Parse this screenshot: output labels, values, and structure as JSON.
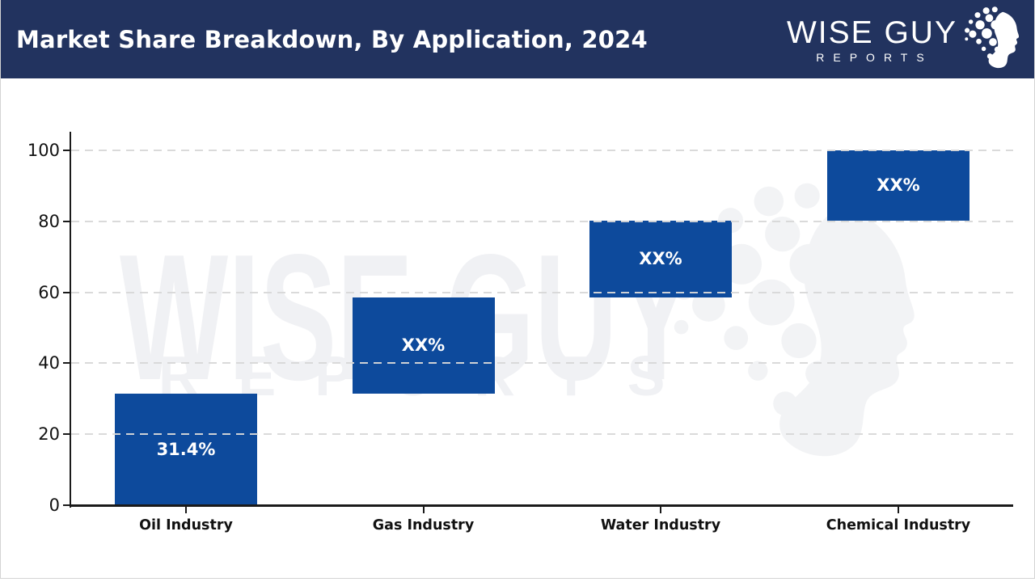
{
  "header": {
    "title": "Market Share Breakdown, By Application, 2024",
    "logo": {
      "primary": "WISE GUY",
      "secondary": "REPORTS"
    }
  },
  "watermark": {
    "primary": "WISE GUY",
    "secondary": "REPORTS"
  },
  "colors": {
    "header_bg": "#22335f",
    "bar": "#0d4a9c",
    "grid": "#d8d8d8",
    "axis": "#1a1a1a",
    "watermark": "#f0f1f4",
    "frame": "#d4d4d4",
    "title_text": "#ffffff",
    "bar_label_text": "#ffffff"
  },
  "chart_data": {
    "type": "bar",
    "variant": "waterfall",
    "title": "Market Share Breakdown, By Application, 2024",
    "categories": [
      "Oil Industry",
      "Gas Industry",
      "Water Industry",
      "Chemical Industry"
    ],
    "segments": [
      {
        "category": "Oil Industry",
        "start": 0,
        "end": 31.4,
        "label": "31.4%"
      },
      {
        "category": "Gas Industry",
        "start": 31.4,
        "end": 58.6,
        "label": "XX%"
      },
      {
        "category": "Water Industry",
        "start": 58.6,
        "end": 80.2,
        "label": "XX%"
      },
      {
        "category": "Chemical Industry",
        "start": 80.2,
        "end": 100,
        "label": "XX%"
      }
    ],
    "xlabel": "",
    "ylabel": "",
    "ylim": [
      0,
      100
    ],
    "yticks": [
      0,
      20,
      40,
      60,
      80,
      100
    ],
    "grid": "horizontal-dashed",
    "legend": "none"
  }
}
